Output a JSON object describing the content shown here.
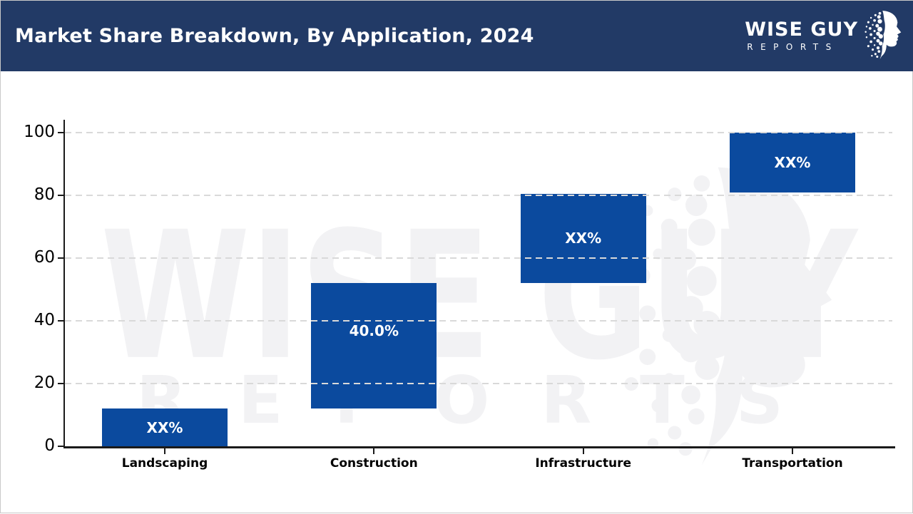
{
  "header": {
    "title": "Market Share Breakdown, By Application, 2024",
    "bg_color": "#223A66",
    "logo": {
      "wordmark": "WISE GUY",
      "sub": "REPORTS"
    }
  },
  "watermark": {
    "wordmark": "WISE GUY",
    "sub": "REPORTS"
  },
  "chart_data": {
    "type": "bar",
    "subtype": "floating-waterfall",
    "title": "Market Share Breakdown, By Application, 2024",
    "categories": [
      "Landscaping",
      "Construction",
      "Infrastructure",
      "Transportation"
    ],
    "bars": [
      {
        "category": "Landscaping",
        "start": 0,
        "end": 12,
        "label": "XX%"
      },
      {
        "category": "Construction",
        "start": 12,
        "end": 52,
        "label": "40.0%"
      },
      {
        "category": "Infrastructure",
        "start": 52,
        "end": 80.5,
        "label": "XX%"
      },
      {
        "category": "Transportation",
        "start": 81,
        "end": 100,
        "label": "XX%"
      }
    ],
    "xlabel": "",
    "ylabel": "",
    "ylim": [
      0,
      105
    ],
    "yticks": [
      0,
      20,
      40,
      60,
      80,
      100
    ],
    "grid": "horizontal-dashed",
    "legend": "none",
    "bar_color": "#0B4A9E",
    "bar_label_color": "#FFFFFF",
    "axis_color": "#1A1A1A",
    "grid_color": "#D9D9D9",
    "watermark_text": "WISE GUY REPORTS"
  }
}
